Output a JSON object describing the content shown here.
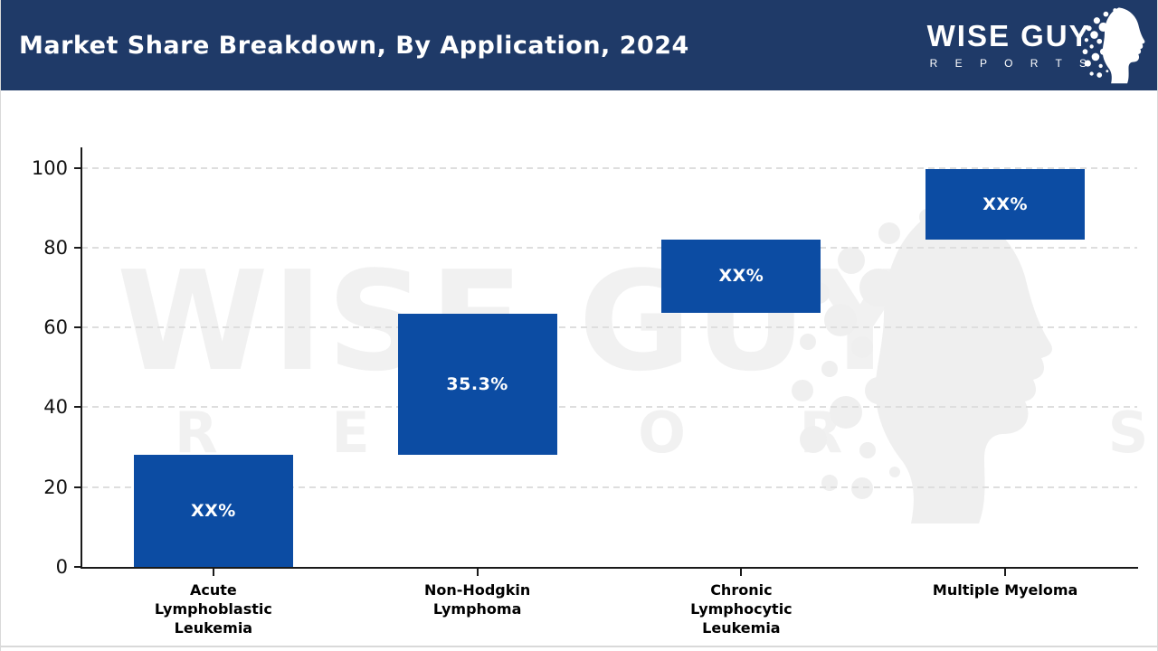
{
  "header": {
    "title": "Market Share Breakdown, By Application, 2024",
    "logo": {
      "name_line": "WISE GUY",
      "reports_line": "R E P O R T S"
    }
  },
  "watermark": {
    "name_line": "WISE GUY",
    "reports_line": "R E P O R T S"
  },
  "chart_data": {
    "type": "bar",
    "variant": "floating-waterfall",
    "title": "Market Share Breakdown, By Application, 2024",
    "categories": [
      "Acute Lymphoblastic Leukemia",
      "Non-Hodgkin Lymphoma",
      "Chronic Lymphocytic Leukemia",
      "Multiple Myeloma"
    ],
    "category_label_lines": [
      [
        "Acute",
        "Lymphoblastic",
        "Leukemia"
      ],
      [
        "Non-Hodgkin",
        "Lymphoma"
      ],
      [
        "Chronic",
        "Lymphocytic",
        "Leukemia"
      ],
      [
        "Multiple Myeloma"
      ]
    ],
    "bars": [
      {
        "start": 0,
        "end": 28.2,
        "label": "XX%"
      },
      {
        "start": 28.2,
        "end": 63.5,
        "label": "35.3%"
      },
      {
        "start": 63.7,
        "end": 82.1,
        "label": "XX%"
      },
      {
        "start": 82.1,
        "end": 99.7,
        "label": "XX%"
      }
    ],
    "xlabel": "",
    "ylabel": "",
    "ylim": [
      0,
      105
    ],
    "yticks": [
      0,
      20,
      40,
      60,
      80,
      100
    ],
    "grid": "horizontal-dashed",
    "legend": "none",
    "colors": {
      "bar": "#0C4CA3",
      "bar_label": "#FFFFFF",
      "header_bg": "#1F3A68",
      "grid_line": "#DEDEDE",
      "axis_line": "#1A1A1A",
      "tick_text": "#111111",
      "watermark": "#F1F1F1"
    }
  }
}
